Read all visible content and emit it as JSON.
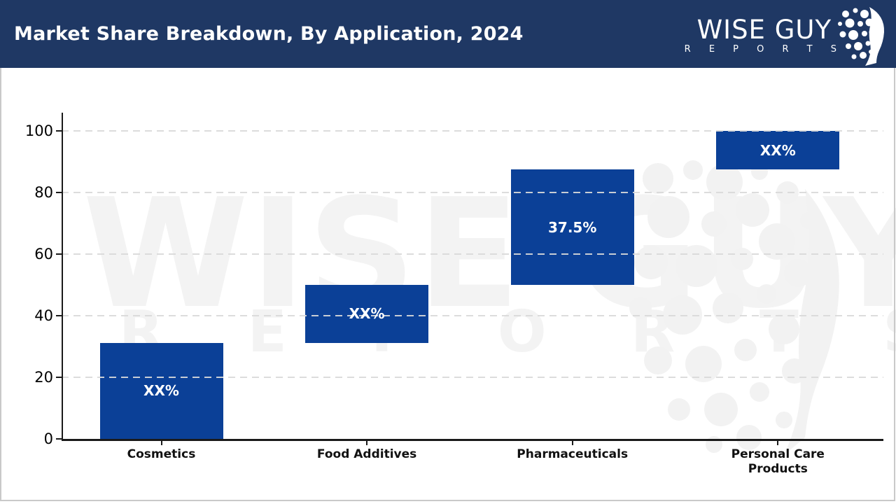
{
  "header": {
    "title": "Market Share Breakdown, By Application, 2024",
    "logo": {
      "name": "WISE GUY",
      "tagline": "R E P O R T S"
    }
  },
  "watermark": {
    "name": "WISE GUY",
    "tagline": "REPORTS"
  },
  "chart_data": {
    "type": "bar",
    "subtype": "floating-segment (waterfall-style market share)",
    "title": "Market Share Breakdown, By Application, 2024",
    "categories": [
      "Cosmetics",
      "Food Additives",
      "Pharmaceuticals",
      "Personal Care Products"
    ],
    "bars": [
      {
        "category": "Cosmetics",
        "label": "XX%",
        "start": 0,
        "end": 31.25
      },
      {
        "category": "Food Additives",
        "label": "XX%",
        "start": 31.25,
        "end": 50
      },
      {
        "category": "Pharmaceuticals",
        "label": "37.5%",
        "start": 50,
        "end": 87.5
      },
      {
        "category": "Personal Care Products",
        "label": "XX%",
        "start": 87.5,
        "end": 100
      }
    ],
    "xlabel": "",
    "ylabel": "",
    "yticks": [
      0,
      20,
      40,
      60,
      80,
      100
    ],
    "ylim": [
      0,
      106
    ],
    "grid": "horizontal dashed",
    "legend": "none"
  },
  "colors": {
    "header_bg": "#1f3864",
    "bar": "#0b4097",
    "bar_label": "#ffffff",
    "gridline": "#d9d9d9",
    "axis": "#1a1a1a",
    "watermark": "#f3f3f3",
    "card_border": "#c9c9c9"
  }
}
